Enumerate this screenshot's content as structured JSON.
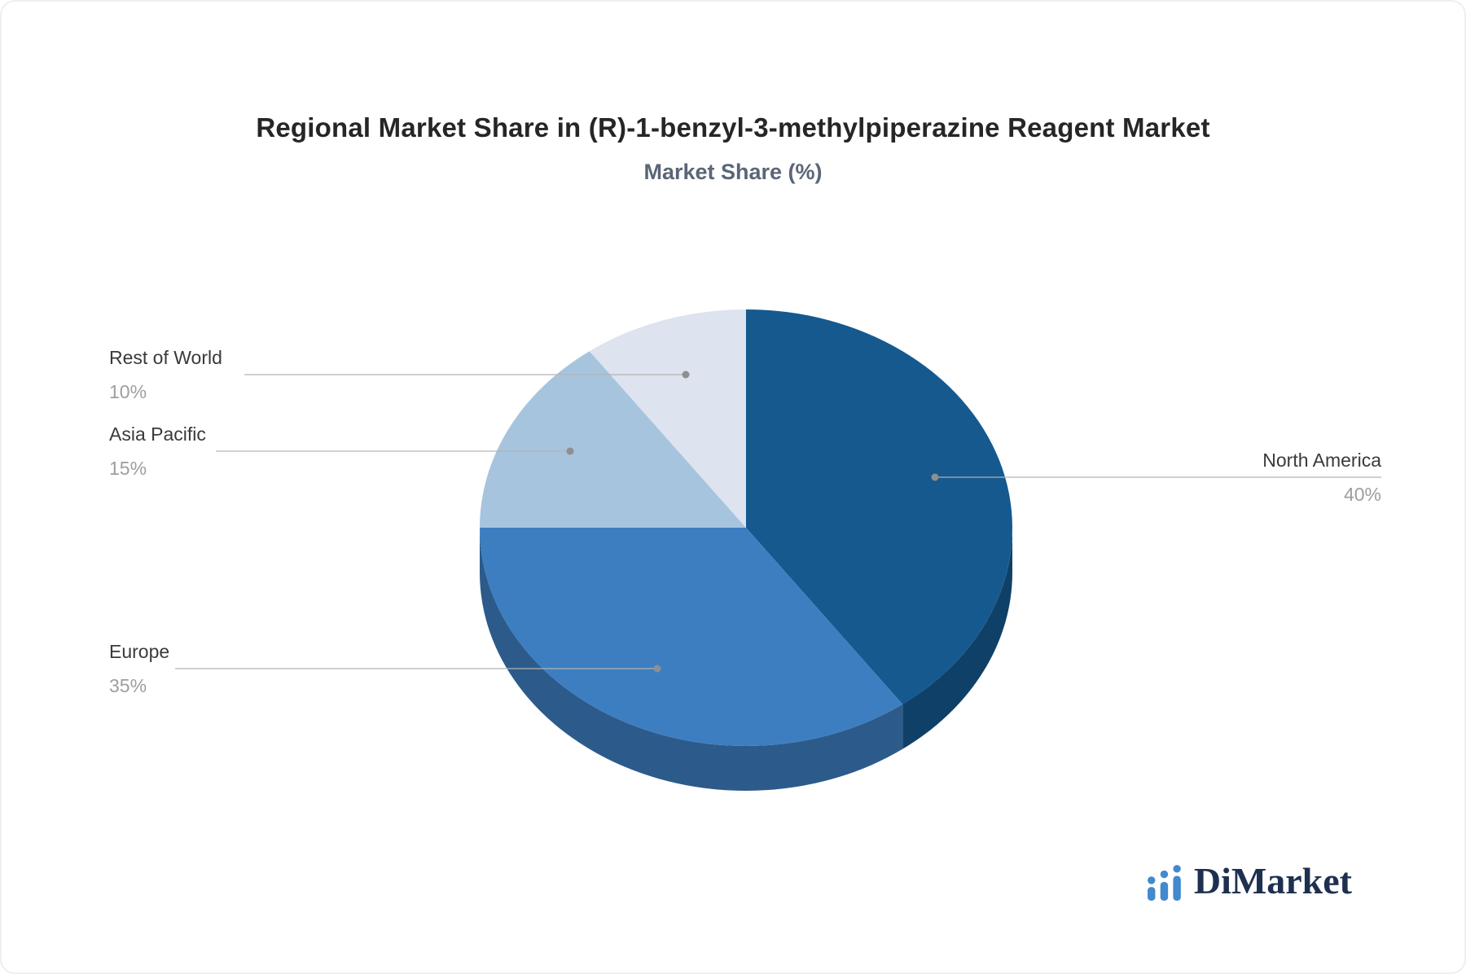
{
  "chart_data": {
    "type": "pie",
    "style": "3d-pie",
    "title": "Regional Market Share in (R)-1-benzyl-3-methylpiperazine Reagent Market",
    "subtitle": "Market Share (%)",
    "unit": "%",
    "categories": [
      "North America",
      "Europe",
      "Asia Pacific",
      "Rest of World"
    ],
    "values": [
      40,
      35,
      15,
      10
    ],
    "slices": [
      {
        "label": "North America",
        "value": 40,
        "display": "40%",
        "color": "#15598F"
      },
      {
        "label": "Europe",
        "value": 35,
        "display": "35%",
        "color": "#3D7EC1"
      },
      {
        "label": "Asia Pacific",
        "value": 15,
        "display": "15%",
        "color": "#A7C4DE"
      },
      {
        "label": "Rest of World",
        "value": 10,
        "display": "10%",
        "color": "#DDE4EF"
      }
    ],
    "start_angle": "top",
    "direction": "clockwise",
    "legend_position": "none",
    "labels_shown_as": "callout-lines",
    "leader_line_color": "#B3B3B3",
    "leader_dot_color": "#8F8F8F",
    "label_name_color": "#3A3A3A",
    "label_value_color": "#9E9E9E"
  },
  "logo": {
    "text": "DiMarket",
    "icon": "bar-chart-icon",
    "icon_color": "#4289CE",
    "text_color": "#1E3050"
  }
}
